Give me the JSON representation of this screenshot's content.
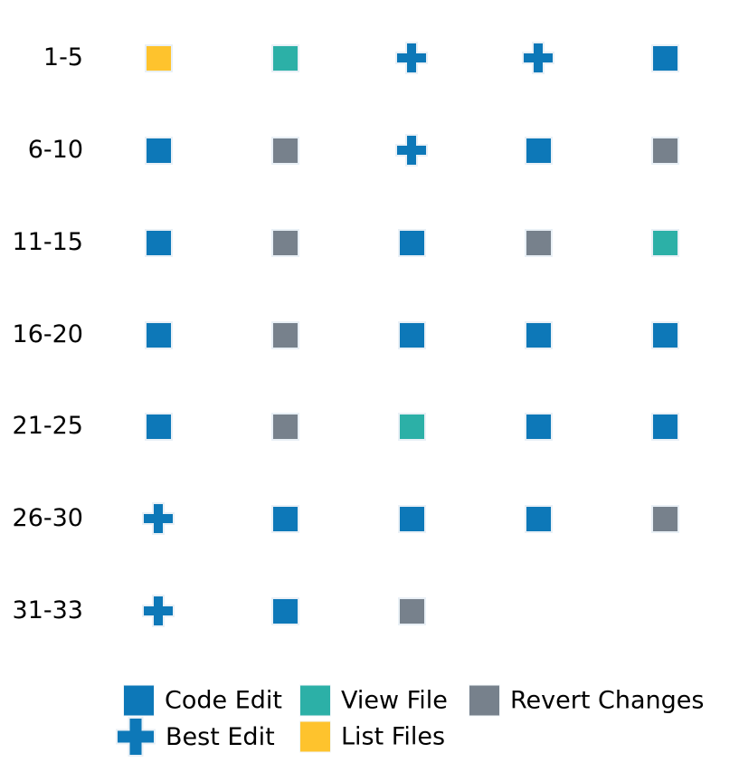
{
  "chart_data": {
    "type": "scatter",
    "title": "",
    "xlabel": "",
    "ylabel": "",
    "grid": false,
    "legend_position": "bottom",
    "columns_per_row": 5,
    "categories": [
      "1-5",
      "6-10",
      "11-15",
      "16-20",
      "21-25",
      "26-30",
      "31-33"
    ],
    "rows": [
      {
        "label": "1-5",
        "actions": [
          "List Files",
          "View File",
          "Best Edit",
          "Best Edit",
          "Code Edit"
        ]
      },
      {
        "label": "6-10",
        "actions": [
          "Code Edit",
          "Revert Changes",
          "Best Edit",
          "Code Edit",
          "Revert Changes"
        ]
      },
      {
        "label": "11-15",
        "actions": [
          "Code Edit",
          "Revert Changes",
          "Code Edit",
          "Revert Changes",
          "View File"
        ]
      },
      {
        "label": "16-20",
        "actions": [
          "Code Edit",
          "Revert Changes",
          "Code Edit",
          "Code Edit",
          "Code Edit"
        ]
      },
      {
        "label": "21-25",
        "actions": [
          "Code Edit",
          "Revert Changes",
          "View File",
          "Code Edit",
          "Code Edit"
        ]
      },
      {
        "label": "26-30",
        "actions": [
          "Best Edit",
          "Code Edit",
          "Code Edit",
          "Code Edit",
          "Revert Changes"
        ]
      },
      {
        "label": "31-33",
        "actions": [
          "Best Edit",
          "Code Edit",
          "Revert Changes"
        ]
      }
    ],
    "legend": [
      {
        "label": "Code Edit",
        "marker": "square",
        "color": "#0d78b8"
      },
      {
        "label": "View File",
        "marker": "square",
        "color": "#2cb0a7"
      },
      {
        "label": "Revert Changes",
        "marker": "square",
        "color": "#77818c"
      },
      {
        "label": "Best Edit",
        "marker": "plus",
        "color": "#0d78b8"
      },
      {
        "label": "List Files",
        "marker": "square",
        "color": "#fec32d"
      }
    ]
  }
}
